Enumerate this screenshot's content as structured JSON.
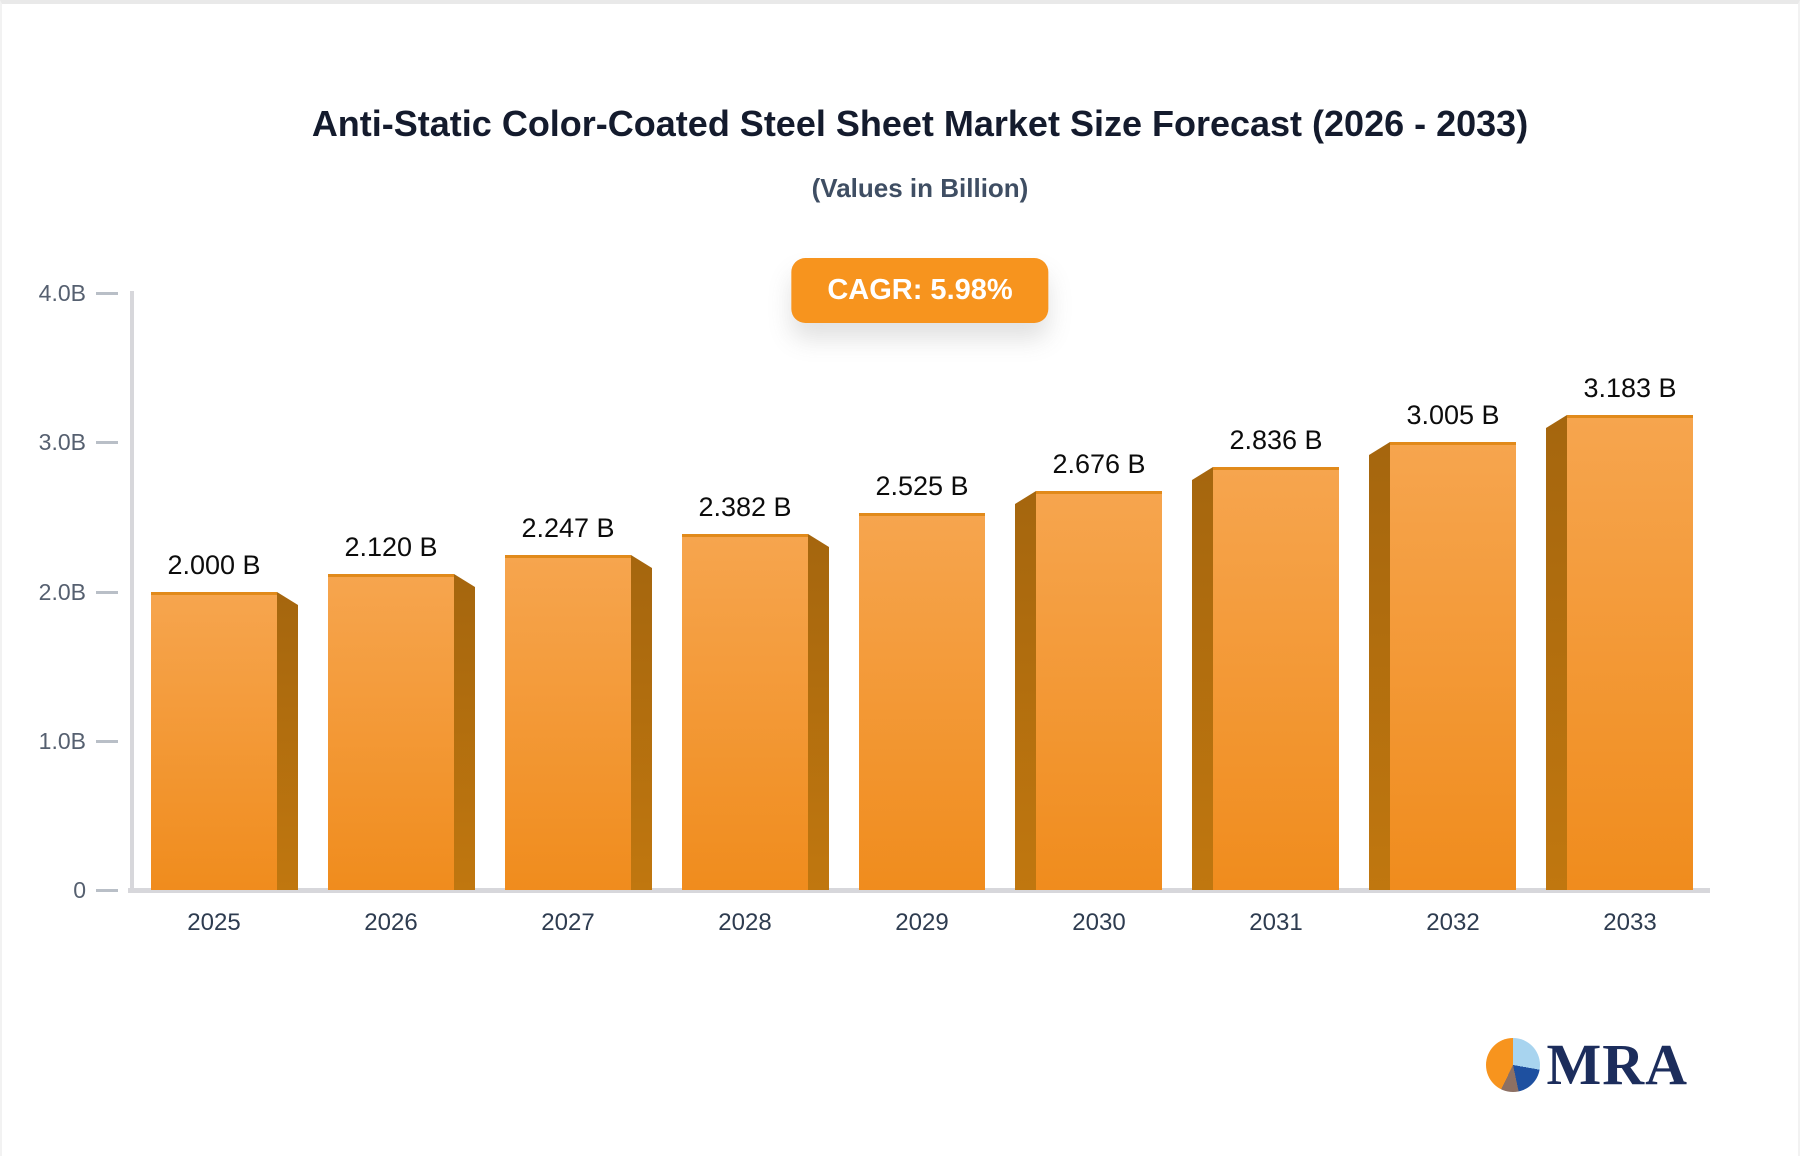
{
  "chart_data": {
    "type": "bar",
    "title": "Anti-Static Color-Coated Steel Sheet Market Size Forecast (2026 - 2033)",
    "subtitle": "(Values in Billion)",
    "badge_label": "CAGR: 5.98%",
    "categories": [
      "2025",
      "2026",
      "2027",
      "2028",
      "2029",
      "2030",
      "2031",
      "2032",
      "2033"
    ],
    "values": [
      2.0,
      2.12,
      2.247,
      2.382,
      2.525,
      2.676,
      2.836,
      3.005,
      3.183
    ],
    "value_labels": [
      "2.000 B",
      "2.120 B",
      "2.247 B",
      "2.382 B",
      "2.525 B",
      "2.676 B",
      "2.836 B",
      "3.005 B",
      "3.183 B"
    ],
    "unit": "B",
    "xlabel": "",
    "ylabel": "",
    "ylim": [
      0,
      4
    ],
    "yticks": [
      {
        "value": 0,
        "label": "0"
      },
      {
        "value": 1,
        "label": "1.0B"
      },
      {
        "value": 2,
        "label": "2.0B"
      },
      {
        "value": 3,
        "label": "3.0B"
      },
      {
        "value": 4,
        "label": "4.0B"
      }
    ],
    "grid": false,
    "legend": "none",
    "bar_style": "3d-perspective-center",
    "colors": {
      "bar_face_top": "#f6a54e",
      "bar_face_bottom": "#f08c1d",
      "bar_side_top": "#a5660e",
      "bar_side_bottom": "#c0770f",
      "bar_top_edge": "#e18a1b",
      "badge_background": "#f7941e",
      "badge_text": "#ffffff",
      "axis": "#d7d7db",
      "title_text": "#141b2d",
      "subtitle_text": "#3f4e63",
      "value_label_text": "#0c0c0c",
      "year_label_text": "#2e3c50",
      "ytick_label_text": "#566070"
    }
  },
  "logo": {
    "text": "MRA",
    "icon": "pie-chart-icon",
    "icon_colors": {
      "orange": "#f7941e",
      "light_blue": "#a8d4ef",
      "blue": "#1e50a0",
      "brown": "#8d7063",
      "text_navy": "#1c2d5c"
    }
  }
}
